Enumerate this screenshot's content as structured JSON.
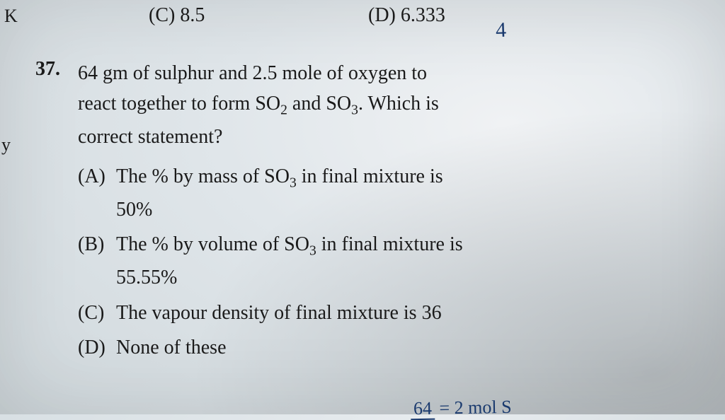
{
  "margin": {
    "k": "K",
    "y": "y"
  },
  "top_options": {
    "c": {
      "label": "(C)",
      "value": "8.5"
    },
    "d": {
      "label": "(D)",
      "value": "6.333"
    },
    "handwritten": "4"
  },
  "question": {
    "number": "37.",
    "line1": "64 gm of sulphur and 2.5 mole of oxygen to",
    "line2_prefix": "react together to form SO",
    "line2_sub1": "2",
    "line2_mid": " and SO",
    "line2_sub2": "3",
    "line2_suffix": ". Which is",
    "line3": "correct statement?"
  },
  "options": {
    "a": {
      "label": "(A)",
      "line1_prefix": "The % by mass of SO",
      "line1_sub": "3",
      "line1_suffix": " in final mixture is",
      "line2": "50%"
    },
    "b": {
      "label": "(B)",
      "line1_prefix": "The % by volume of SO",
      "line1_sub": "3",
      "line1_suffix": " in final mixture is",
      "line2": "55.55%"
    },
    "c": {
      "label": "(C)",
      "text": "The vapour density of final mixture is 36"
    },
    "d": {
      "label": "(D)",
      "text": "None of these"
    }
  },
  "handwritten_bottom": {
    "numerator": "64",
    "eq": "= 2 mol S"
  },
  "colors": {
    "text": "#1a1a1a",
    "handwrite": "#1a3a6e",
    "bg_light": "#e8ecef",
    "bg_dark": "#c8d0d4"
  }
}
